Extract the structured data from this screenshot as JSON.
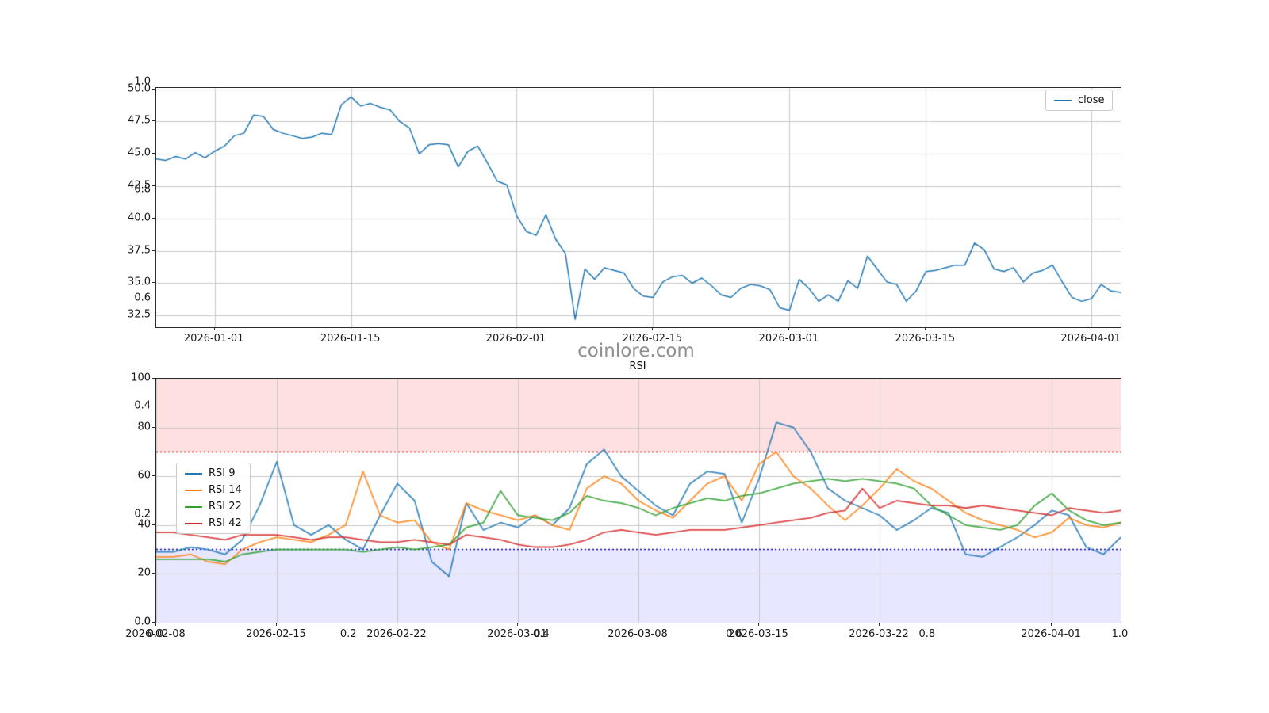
{
  "page": {
    "watermark": "coinlore.com",
    "background": "#ffffff"
  },
  "overlay_axis": {
    "ticks": [
      "0.0",
      "0.2",
      "0.4",
      "0.6",
      "0.8",
      "1.0"
    ]
  },
  "chart_data": [
    {
      "type": "line",
      "title": "",
      "start_date": "2025-12-26",
      "x_tick_labels": [
        "2026-01-01",
        "2026-01-15",
        "2026-02-01",
        "2026-02-15",
        "2026-03-01",
        "2026-03-15",
        "2026-04-01"
      ],
      "x_tick_offsets": [
        6,
        20,
        37,
        51,
        65,
        79,
        96
      ],
      "y_ticks": [
        32.5,
        35.0,
        37.5,
        40.0,
        42.5,
        45.0,
        47.5,
        50.0
      ],
      "ylim": [
        31.6,
        50.1
      ],
      "grid": true,
      "legend_position": "upper right",
      "series": [
        {
          "name": "close",
          "color": "#1f77b4",
          "values": [
            44.6,
            44.5,
            44.8,
            44.6,
            45.1,
            44.7,
            45.2,
            45.6,
            46.4,
            46.6,
            48.0,
            47.9,
            46.9,
            46.6,
            46.4,
            46.2,
            46.3,
            46.6,
            46.5,
            48.8,
            49.4,
            48.7,
            48.9,
            48.6,
            48.4,
            47.5,
            47.0,
            45.0,
            45.7,
            45.8,
            45.7,
            44.0,
            45.2,
            45.6,
            44.3,
            42.9,
            42.6,
            40.2,
            39.0,
            38.7,
            40.3,
            38.4,
            37.3,
            32.2,
            36.1,
            35.3,
            36.2,
            36.0,
            35.8,
            34.6,
            34.0,
            33.9,
            35.1,
            35.5,
            35.6,
            35.0,
            35.4,
            34.8,
            34.1,
            33.9,
            34.6,
            34.9,
            34.8,
            34.5,
            33.1,
            32.9,
            35.3,
            34.6,
            33.6,
            34.1,
            33.6,
            35.2,
            34.6,
            37.1,
            36.1,
            35.1,
            34.9,
            33.6,
            34.4,
            35.9,
            36.0,
            36.2,
            36.4,
            36.4,
            38.1,
            37.6,
            36.1,
            35.9,
            36.2,
            35.1,
            35.8,
            36.0,
            36.4,
            35.1,
            33.9,
            33.6,
            33.8,
            34.9,
            34.4,
            34.3
          ]
        }
      ]
    },
    {
      "type": "line",
      "title": "RSI",
      "start_date": "2026-02-08",
      "x_tick_labels": [
        "2026-02-08",
        "2026-02-15",
        "2026-02-22",
        "2026-03-01",
        "2026-03-08",
        "2026-03-15",
        "2026-03-22",
        "2026-04-01"
      ],
      "x_tick_offsets": [
        0,
        7,
        14,
        21,
        28,
        35,
        42,
        52
      ],
      "y_ticks": [
        0,
        20,
        40,
        60,
        80,
        100
      ],
      "ylim": [
        0,
        100
      ],
      "grid": true,
      "bands": [
        {
          "from": 70,
          "to": 100,
          "color": "rgba(255,60,60,0.16)",
          "meaning": "overbought"
        },
        {
          "from": 0,
          "to": 30,
          "color": "rgba(60,60,255,0.12)",
          "meaning": "oversold"
        }
      ],
      "hlines": [
        {
          "y": 70,
          "color": "#d40000",
          "style": "dotted"
        },
        {
          "y": 30,
          "color": "#0000b8",
          "style": "dotted"
        }
      ],
      "series": [
        {
          "name": "RSI 9",
          "color": "#1f77b4",
          "values": [
            29,
            29,
            31,
            30,
            28,
            34,
            48,
            66,
            40,
            36,
            40,
            34,
            30,
            44,
            57,
            50,
            25,
            19,
            49,
            38,
            41,
            39,
            44,
            40,
            47,
            65,
            71,
            60,
            54,
            48,
            44,
            57,
            62,
            61,
            41,
            59,
            82,
            80,
            70,
            55,
            50,
            47,
            44,
            38,
            42,
            47,
            45,
            28,
            27,
            31,
            35,
            40,
            46,
            44,
            31,
            28,
            35
          ]
        },
        {
          "name": "RSI 14",
          "color": "#ff7f0e",
          "values": [
            27,
            27,
            28,
            25,
            24,
            30,
            33,
            35,
            34,
            33,
            36,
            40,
            62,
            44,
            41,
            42,
            33,
            30,
            49,
            46,
            44,
            42,
            44,
            40,
            38,
            55,
            60,
            57,
            50,
            46,
            43,
            50,
            57,
            60,
            50,
            65,
            70,
            60,
            55,
            48,
            42,
            48,
            55,
            63,
            58,
            55,
            50,
            45,
            42,
            40,
            38,
            35,
            37,
            43,
            40,
            39,
            41
          ]
        },
        {
          "name": "RSI 22",
          "color": "#2ca02c",
          "values": [
            26,
            26,
            26,
            26,
            25,
            28,
            29,
            30,
            30,
            30,
            30,
            30,
            29,
            30,
            31,
            30,
            31,
            32,
            39,
            41,
            54,
            44,
            43,
            42,
            45,
            52,
            50,
            49,
            47,
            44,
            47,
            49,
            51,
            50,
            52,
            53,
            55,
            57,
            58,
            59,
            58,
            59,
            58,
            57,
            55,
            48,
            44,
            40,
            39,
            38,
            40,
            48,
            53,
            46,
            42,
            40,
            41
          ]
        },
        {
          "name": "RSI 42",
          "color": "#d62728",
          "values": [
            37,
            37,
            36,
            35,
            34,
            36,
            36,
            36,
            35,
            34,
            35,
            35,
            34,
            33,
            33,
            34,
            33,
            32,
            36,
            35,
            34,
            32,
            31,
            31,
            32,
            34,
            37,
            38,
            37,
            36,
            37,
            38,
            38,
            38,
            39,
            40,
            41,
            42,
            43,
            45,
            46,
            55,
            47,
            50,
            49,
            48,
            48,
            47,
            48,
            47,
            46,
            45,
            44,
            47,
            46,
            45,
            46
          ]
        }
      ]
    }
  ]
}
